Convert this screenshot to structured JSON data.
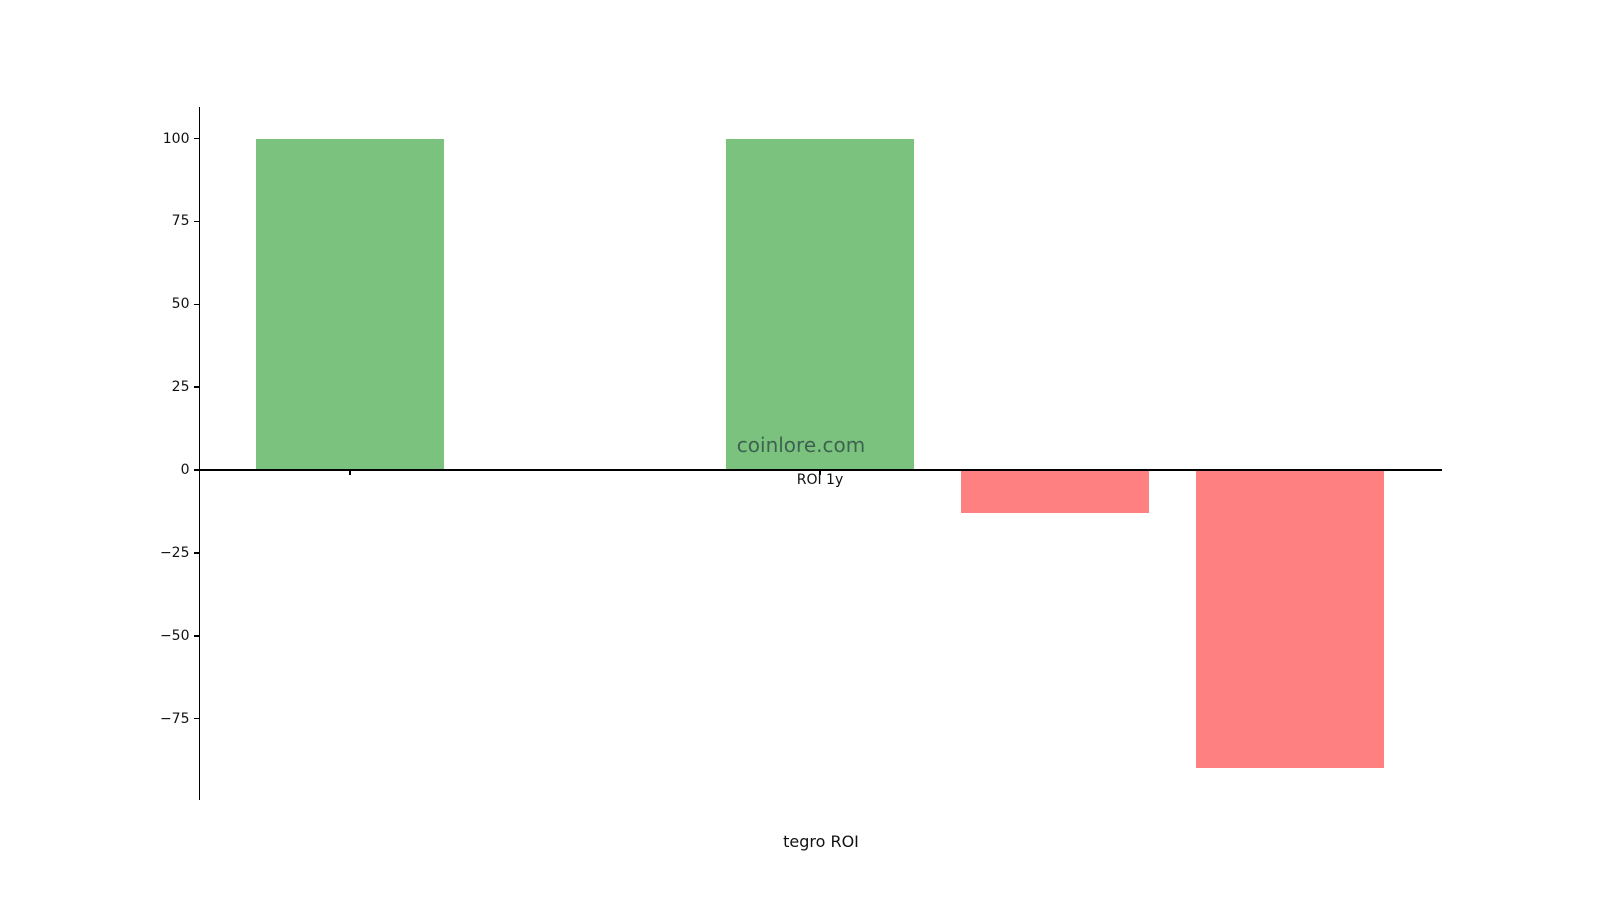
{
  "page": {
    "background": "#ffffff"
  },
  "chart_data": {
    "type": "bar",
    "title": "tegro ROI",
    "watermark": "coinlore.com",
    "categories": [
      "",
      "",
      "ROI 1y",
      "",
      ""
    ],
    "values": [
      100,
      0,
      100,
      -13,
      -90
    ],
    "x_ticks": [
      {
        "position": 0,
        "label": ""
      },
      {
        "position": 2,
        "label": "ROI 1y"
      }
    ],
    "y_ticks": [
      100,
      75,
      50,
      25,
      0,
      -25,
      -50,
      -75
    ],
    "ylim": [
      -99.5,
      109.5
    ],
    "grid": false,
    "legend": "none",
    "colors": {
      "positive_bar": "#7CC27F",
      "negative_bar": "#FF8080",
      "axis": "#000000",
      "tick_text": "#111111",
      "watermark_text": "#3D6350"
    }
  }
}
